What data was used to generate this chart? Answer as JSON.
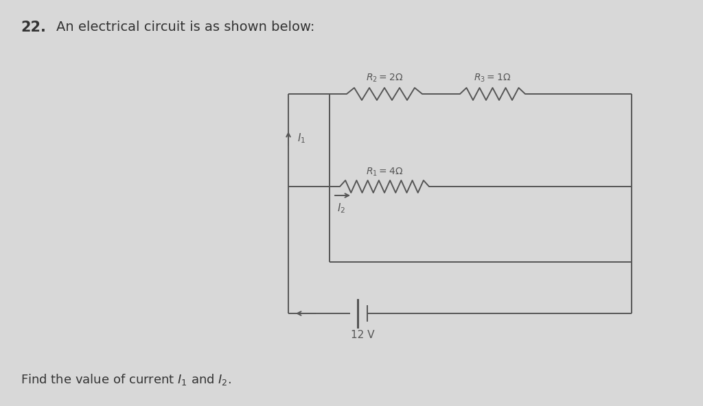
{
  "title_number": "22.",
  "title_text": "An electrical circuit is as shown below:",
  "footer_text": "Find the value of current $I_1$ and $I_2$.",
  "bg_color": "#d8d8d8",
  "circuit_color": "#555555",
  "R2_label": "$R_2=2\\Omega$",
  "R3_label": "$R_3=1\\Omega$",
  "R1_label": "$R_1=4\\Omega$",
  "V_label": "12 V",
  "I1_label": "$I_1$",
  "I2_label": "$I_2$",
  "text_color": "#333333"
}
